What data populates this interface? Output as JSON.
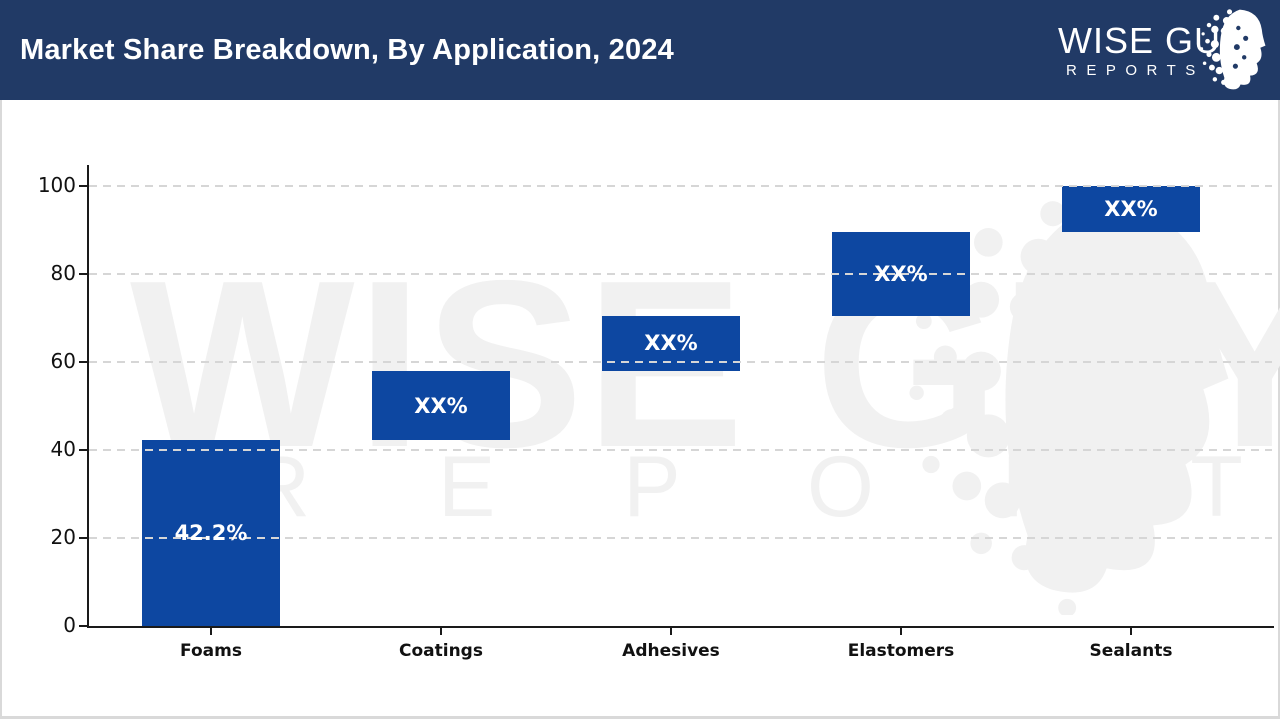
{
  "header": {
    "title": "Market Share Breakdown, By Application, 2024",
    "logo": {
      "line1": "WISE GUY",
      "line2": "REPORTS"
    }
  },
  "watermark": {
    "line1": "WISE GUY",
    "line2": "REPORTS"
  },
  "chart_data": {
    "type": "bar",
    "variant": "waterfall",
    "title": "Market Share Breakdown, By Application, 2024",
    "categories": [
      "Foams",
      "Coatings",
      "Adhesives",
      "Elastomers",
      "Sealants"
    ],
    "series": [
      {
        "name": "Market Share",
        "segments": [
          {
            "category": "Foams",
            "start": 0,
            "end": 42.2,
            "label": "42.2%"
          },
          {
            "category": "Coatings",
            "start": 42.2,
            "end": 58,
            "label": "XX%"
          },
          {
            "category": "Adhesives",
            "start": 58,
            "end": 70.5,
            "label": "XX%"
          },
          {
            "category": "Elastomers",
            "start": 70.5,
            "end": 89.5,
            "label": "XX%"
          },
          {
            "category": "Sealants",
            "start": 89.5,
            "end": 100,
            "label": "XX%"
          }
        ]
      }
    ],
    "xlabel": "",
    "ylabel": "",
    "ylim": [
      0,
      105
    ],
    "yticks": [
      0,
      20,
      40,
      60,
      80,
      100
    ],
    "grid": "dashed-horizontal-over-bars",
    "legend": "none",
    "bar_color": "#0d47a1",
    "bar_label_color": "#ffffff"
  },
  "colors": {
    "header_bg": "#213a66",
    "bar": "#0d47a1",
    "grid": "#d6d6d6",
    "axis": "#1a1a1a",
    "watermark": "#f1f1f1",
    "frame_border": "#d9d9d9"
  }
}
